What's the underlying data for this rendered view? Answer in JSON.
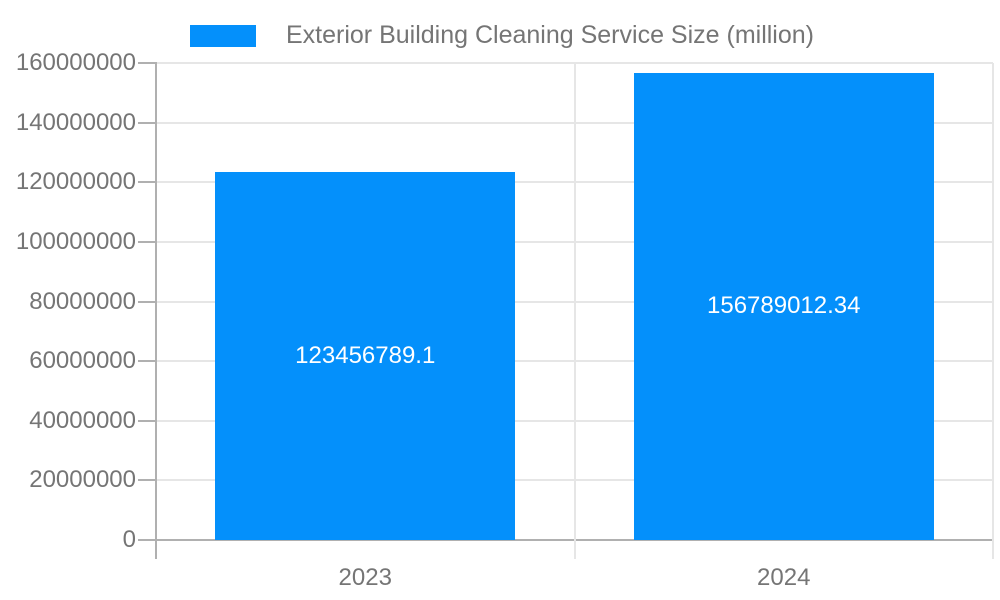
{
  "chart_data": {
    "type": "bar",
    "legend_label": "Exterior Building Cleaning Service Size (million)",
    "categories": [
      "2023",
      "2024"
    ],
    "series": [
      {
        "name": "Exterior Building Cleaning Service Size (million)",
        "values": [
          123456789.1,
          156789012.34
        ],
        "value_labels": [
          "123456789.1",
          "156789012.34"
        ]
      }
    ],
    "xlabel": "",
    "ylabel": "",
    "ylim": [
      0,
      160000000
    ],
    "yticks": [
      0,
      20000000,
      40000000,
      60000000,
      80000000,
      100000000,
      120000000,
      140000000,
      160000000
    ],
    "ytick_labels": [
      "0",
      "20000000",
      "40000000",
      "60000000",
      "80000000",
      "100000000",
      "120000000",
      "140000000",
      "160000000"
    ],
    "grid": "on",
    "legend_position": "top-center",
    "colors": {
      "bar": "#0490fb",
      "value_label_text": "#ffffff",
      "axis_text": "#757575",
      "gridline": "#e6e6e6",
      "axis_line": "#b0b0b0",
      "background": "#ffffff"
    }
  }
}
